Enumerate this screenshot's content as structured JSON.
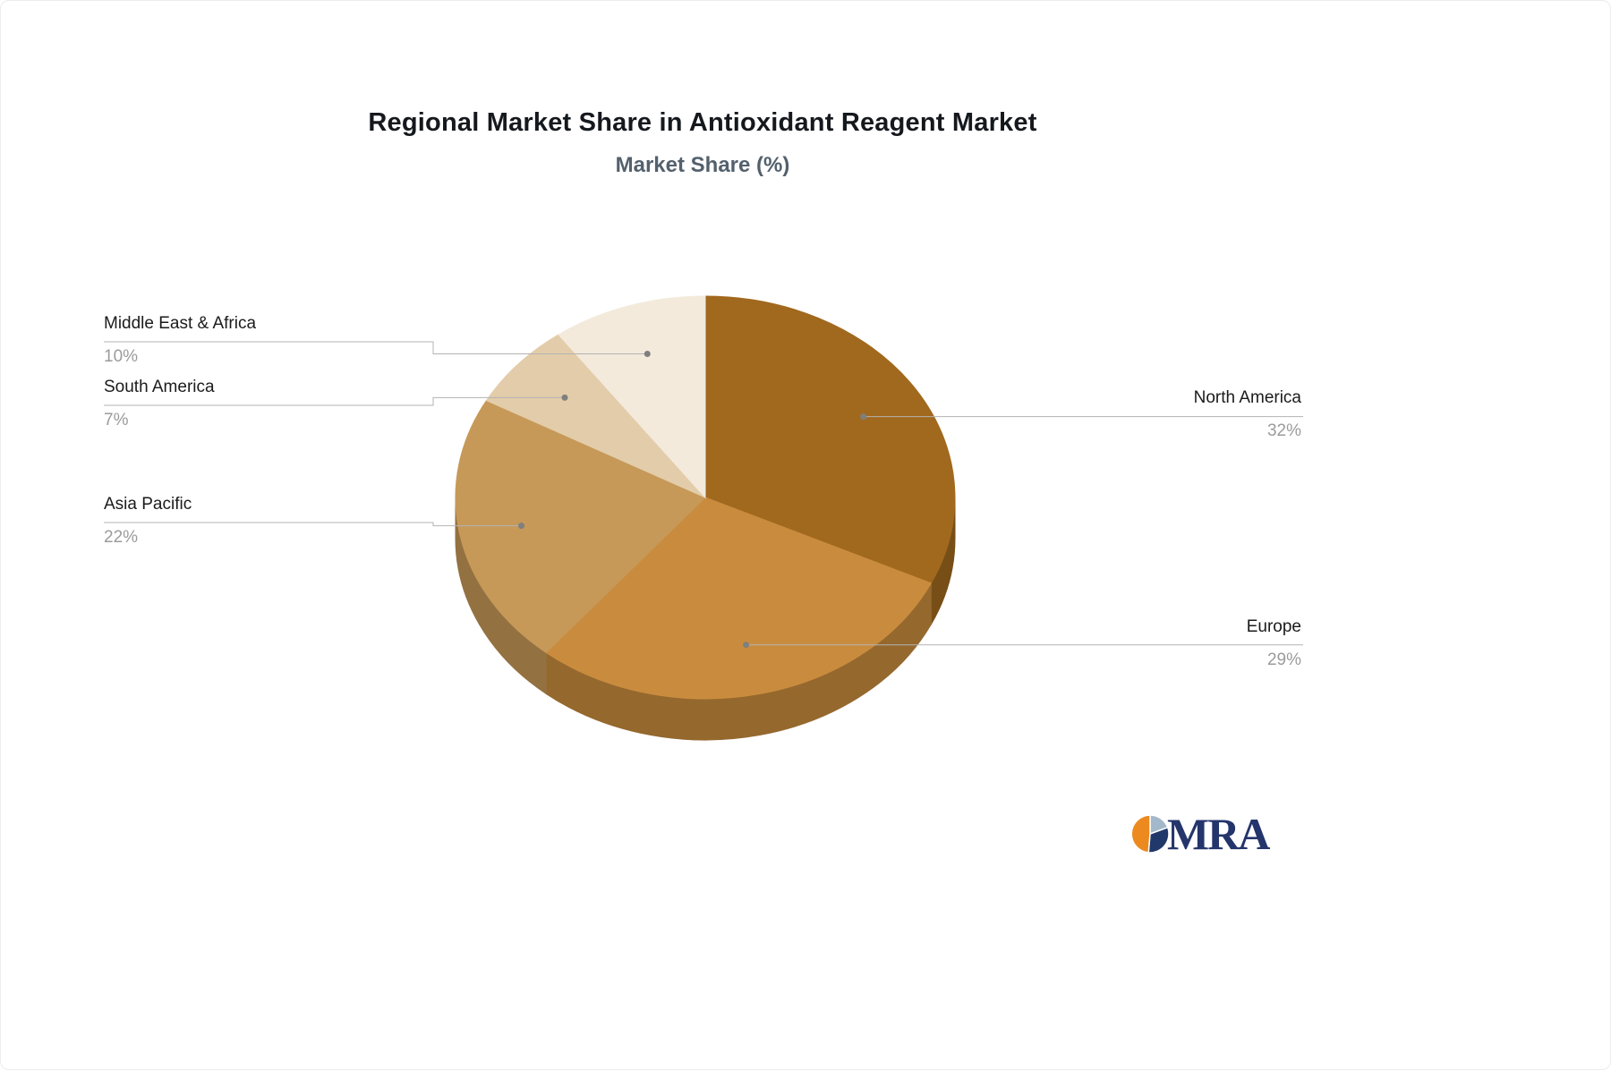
{
  "title": "Regional Market Share in Antioxidant Reagent Market",
  "subtitle": "Market Share (%)",
  "logo": {
    "text": "MRA"
  },
  "slices": [
    {
      "label": "North America",
      "value_label": "32%"
    },
    {
      "label": "Europe",
      "value_label": "29%"
    },
    {
      "label": "Asia Pacific",
      "value_label": "22%"
    },
    {
      "label": "South America",
      "value_label": "7%"
    },
    {
      "label": "Middle East & Africa",
      "value_label": "10%"
    }
  ],
  "chart_data": {
    "type": "pie",
    "title": "Regional Market Share in Antioxidant Reagent Market",
    "subtitle": "Market Share (%)",
    "unit": "%",
    "labels": [
      "North America",
      "Europe",
      "Asia Pacific",
      "South America",
      "Middle East & Africa"
    ],
    "values": [
      32,
      29,
      22,
      7,
      10
    ],
    "colors": [
      "#A1691E",
      "#C98C3E",
      "#C69958",
      "#E3CCA9",
      "#F3EADC"
    ],
    "start_angle_deg": 0,
    "direction": "clockwise",
    "style": "3d",
    "legend": "none",
    "label_layout": "outside-leader-lines"
  }
}
